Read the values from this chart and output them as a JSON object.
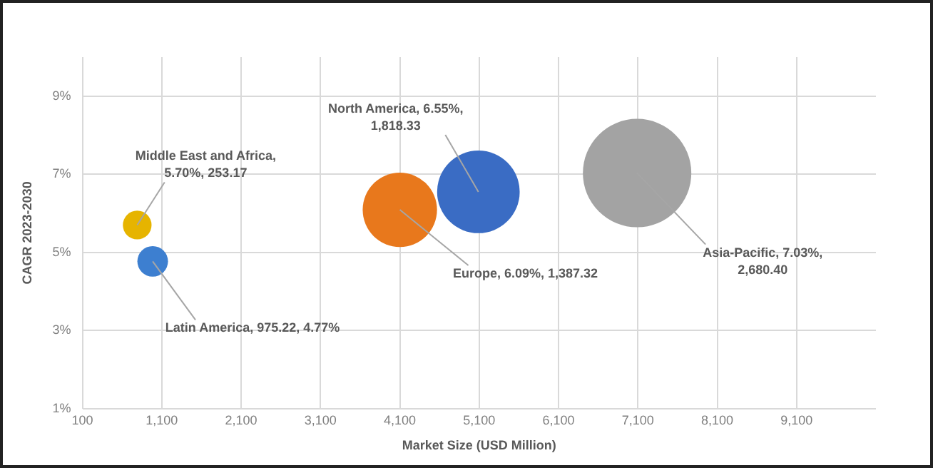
{
  "chart_data": {
    "type": "bubble",
    "xlabel": "Market Size (USD Million)",
    "ylabel": "CAGR 2023-2030",
    "x": [
      790,
      985,
      4100,
      5090,
      7090
    ],
    "values": [
      5.7,
      4.77,
      6.09,
      6.55,
      7.03
    ],
    "sizes": [
      0.07,
      0.08,
      0.47,
      0.58,
      1
    ],
    "colors": [
      "#e6b400",
      "#3d7fd0",
      "#e8781c",
      "#3a6cc4",
      "#a3a3a3"
    ],
    "xlim": [
      100,
      10100
    ],
    "xticks": [
      {
        "value": 100,
        "label": "100"
      },
      {
        "value": 1100,
        "label": "1,100"
      },
      {
        "value": 2100,
        "label": "2,100"
      },
      {
        "value": 3100,
        "label": "3,100"
      },
      {
        "value": 4100,
        "label": "4,100"
      },
      {
        "value": 5100,
        "label": "5,100"
      },
      {
        "value": 6100,
        "label": "6,100"
      },
      {
        "value": 7100,
        "label": "7,100"
      },
      {
        "value": 8100,
        "label": "8,100"
      },
      {
        "value": 9100,
        "label": "9,100"
      }
    ],
    "ylim": [
      1,
      10
    ],
    "yticks": [
      {
        "value": 1,
        "label": "1%"
      },
      {
        "value": 3,
        "label": "3%"
      },
      {
        "value": 5,
        "label": "5%"
      },
      {
        "value": 7,
        "label": "7%"
      },
      {
        "value": 9,
        "label": "9%"
      }
    ],
    "grid": true,
    "legend": false,
    "annotations": [
      {
        "text": "Middle East and Africa, 5.70%, 253.17",
        "x": 790,
        "y": 5.7
      },
      {
        "text": "Latin America, 975.22, 4.77%",
        "x": 985,
        "y": 4.77
      },
      {
        "text": "Europe, 6.09%, 1,387.32",
        "x": 4100,
        "y": 6.09
      },
      {
        "text": "North America, 6.55%, 1,818.33",
        "x": 5090,
        "y": 6.55
      },
      {
        "text": "Asia-Pacific, 7.03%, 2,680.40",
        "x": 7090,
        "y": 7.03
      }
    ]
  }
}
